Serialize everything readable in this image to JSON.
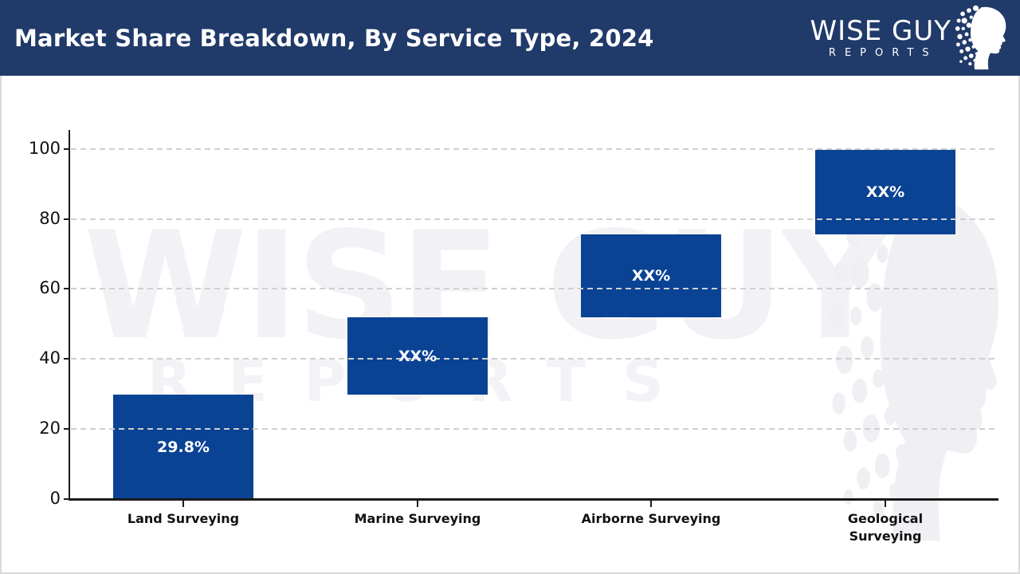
{
  "header": {
    "title": "Market Share Breakdown, By Service Type, 2024",
    "logo": {
      "wordmark": "WISE GUY",
      "reports": "REPORTS"
    }
  },
  "watermark": {
    "wordmark": "WISE GUY",
    "reports": "REPORTS"
  },
  "colors": {
    "header_bg": "#203a69",
    "bar": "#0a4394",
    "grid": "#cfcfcf",
    "axis": "#1a1a1a",
    "tick_text": "#111111",
    "bar_label_text": "#ffffff",
    "watermark_text": "#f2f2f6",
    "frame_border": "#d9d9d9"
  },
  "chart_data": {
    "type": "bar",
    "subtype": "floating-segment-waterfall",
    "title": "Market Share Breakdown, By Service Type, 2024",
    "categories": [
      "Land Surveying",
      "Marine Surveying",
      "Airborne Surveying",
      "Geological Surveying"
    ],
    "category_lines": [
      [
        "Land Surveying"
      ],
      [
        "Marine Surveying"
      ],
      [
        "Airborne Surveying"
      ],
      [
        "Geological",
        "Surveying"
      ]
    ],
    "segments": [
      {
        "category": "Land Surveying",
        "start": 0,
        "end": 29.8,
        "label": "29.8%"
      },
      {
        "category": "Marine Surveying",
        "start": 29.8,
        "end": 51.8,
        "label": "XX%"
      },
      {
        "category": "Airborne Surveying",
        "start": 51.8,
        "end": 75.6,
        "label": "XX%"
      },
      {
        "category": "Geological Surveying",
        "start": 75.6,
        "end": 99.8,
        "label": "XX%"
      }
    ],
    "yticks": [
      0,
      20,
      40,
      60,
      80,
      100
    ],
    "ylim": [
      0,
      105.5
    ],
    "xlabel": "",
    "ylabel": "",
    "grid": "horizontal-dashed",
    "legend": "none",
    "bar_color": "#0a4394"
  }
}
